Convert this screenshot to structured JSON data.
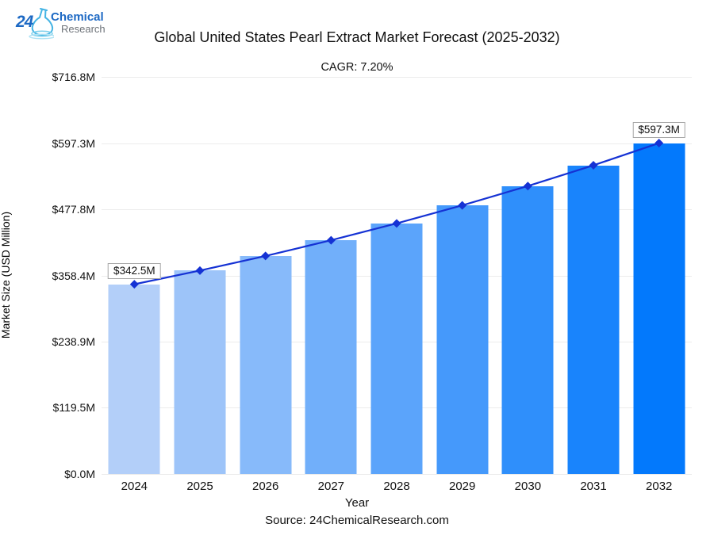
{
  "logo": {
    "number": "24",
    "name_top": "Chemical",
    "name_bottom": "Research",
    "blue": "#1d69c4",
    "gray": "#6d7278",
    "flask_blue": "#45b4e4"
  },
  "header": {
    "title": "Global United States Pearl Extract Market Forecast (2025-2032)",
    "subtitle": "CAGR: 7.20%"
  },
  "chart_data": {
    "type": "bar",
    "overlay": "line",
    "title": "Global United States Pearl Extract Market Forecast (2025-2032)",
    "subtitle": "CAGR: 7.20%",
    "xlabel": "Year",
    "ylabel": "Market Size (USD Million)",
    "categories": [
      "2024",
      "2025",
      "2026",
      "2027",
      "2028",
      "2029",
      "2030",
      "2031",
      "2032"
    ],
    "values": [
      342.5,
      367.2,
      393.6,
      421.9,
      452.3,
      484.9,
      519.8,
      557.2,
      597.3
    ],
    "series_name": "Market Size (USD Million)",
    "ylim": [
      0,
      716.8
    ],
    "ytick_values": [
      716.8,
      597.3,
      477.8,
      358.4,
      238.9,
      119.5,
      0.0
    ],
    "ytick_labels": [
      "$716.8M",
      "$597.3M",
      "$477.8M",
      "$358.4M",
      "$238.9M",
      "$119.5M",
      "$0.0M"
    ],
    "grid": true,
    "legend": "none",
    "annotations": [
      {
        "category": "2024",
        "text": "$342.5M"
      },
      {
        "category": "2032",
        "text": "$597.3M"
      }
    ],
    "colors": {
      "bar_first": "#b3cff9",
      "bar_last": "#0379fc",
      "line": "#1532d4",
      "grid": "#ececec"
    }
  },
  "footer": {
    "source": "Source: 24ChemicalResearch.com"
  }
}
